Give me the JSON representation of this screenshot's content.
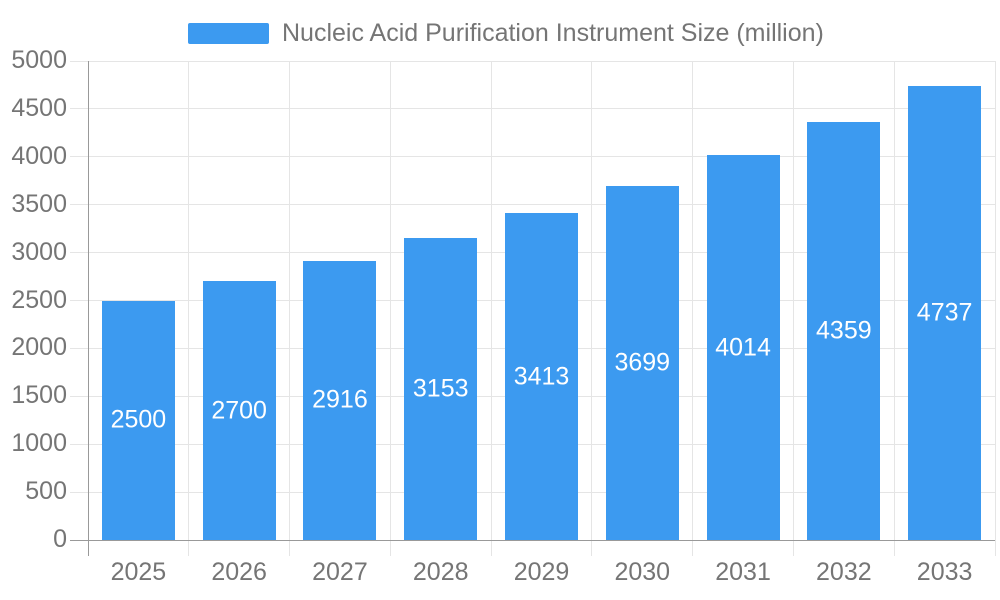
{
  "legend": {
    "label": "Nucleic Acid Purification Instrument Size (million)"
  },
  "chart_data": {
    "type": "bar",
    "title": "Nucleic Acid Purification Instrument Size (million)",
    "series_name": "Nucleic Acid Purification Instrument Size (million)",
    "categories": [
      "2025",
      "2026",
      "2027",
      "2028",
      "2029",
      "2030",
      "2031",
      "2032",
      "2033"
    ],
    "values": [
      2500,
      2700,
      2916,
      3153,
      3413,
      3699,
      4014,
      4359,
      4737
    ],
    "xlabel": "",
    "ylabel": "",
    "ylim": [
      0,
      5000
    ],
    "yticks": [
      0,
      500,
      1000,
      1500,
      2000,
      2500,
      3000,
      3500,
      4000,
      4500,
      5000
    ],
    "grid": true,
    "legend_position": "top",
    "bar_label_position": "inside-middle",
    "colors": {
      "bar": "#3C9AF0",
      "grid": "#E5E5E5",
      "axis_line": "#999999",
      "axis_text": "#757575",
      "bar_label": "#FFFFFF",
      "background": "#FFFFFF"
    }
  }
}
